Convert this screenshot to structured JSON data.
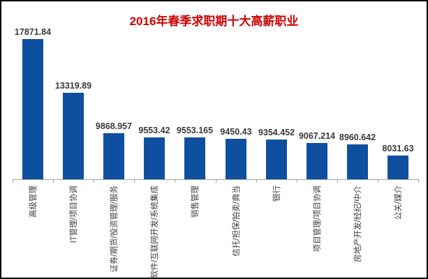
{
  "chart_data": {
    "type": "bar",
    "title": "2016年春季求职期十大高薪职业",
    "categories": [
      "高级管理",
      "IT管理/项目协调",
      "证券/期货/投资管理/服务",
      "软件/互联网开发/系统集成",
      "销售管理",
      "信托/担保/拍卖/典当",
      "银行",
      "项目管理/项目协调",
      "房地产开发/经纪/中介",
      "公关/媒介"
    ],
    "values": [
      17871.84,
      13319.89,
      9868.957,
      9553.42,
      9553.165,
      9450.43,
      9354.452,
      9067.214,
      8960.642,
      8031.63
    ],
    "value_labels": [
      "17871.84",
      "13319.89",
      "9868.957",
      "9553.42",
      "9553.165",
      "9450.43",
      "9354.452",
      "9067.214",
      "8960.642",
      "8031.63"
    ],
    "xlabel": "",
    "ylabel": "",
    "ylim": [
      6000,
      18000
    ],
    "grid": false,
    "legend": null,
    "colors": {
      "bar": "#0f4fa0",
      "title": "#cc0000",
      "value_label": "#3a3a3a",
      "category_label": "#3f3f3f",
      "axis_line": "#a6a6a6",
      "frame": "#000000",
      "background": "#ffffff"
    }
  }
}
